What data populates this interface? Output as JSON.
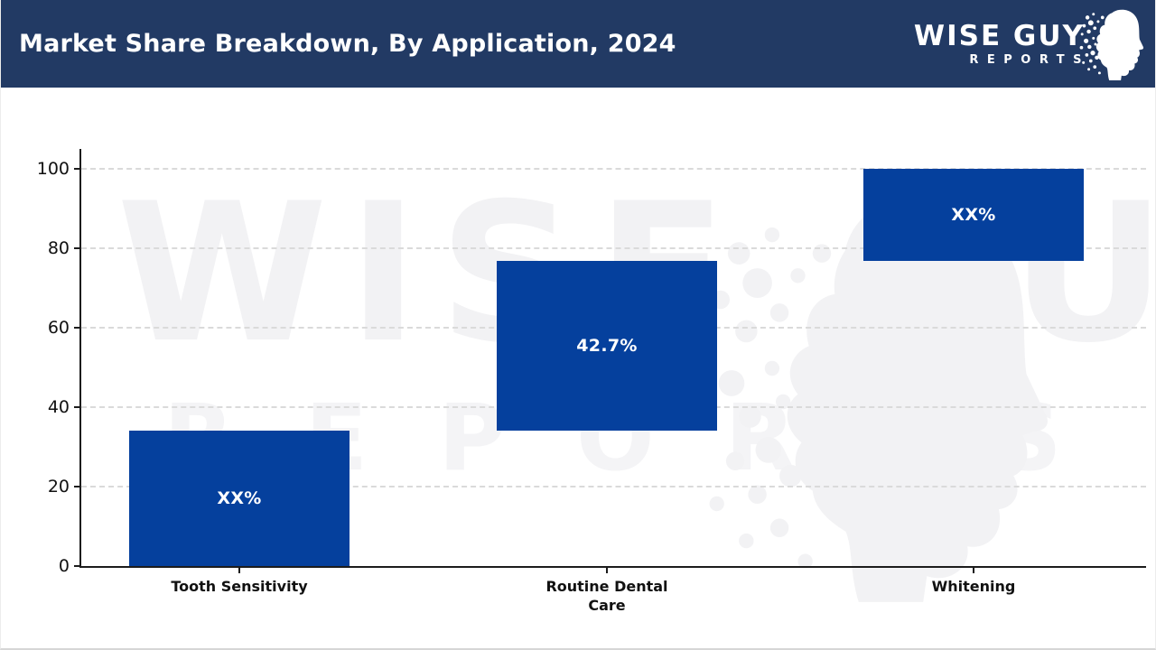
{
  "header": {
    "title": "Market Share Breakdown, By Application, 2024",
    "logo": {
      "name": "WISE GUY REPORTS",
      "line1": "WISE GUY",
      "line2": "REPORTS"
    }
  },
  "watermark": {
    "line1": "WISE GUY",
    "line2": "REPORTS"
  },
  "colors": {
    "header_bg": "#223a64",
    "bar": "#05409d",
    "grid": "#dadada",
    "axis": "#1c1c1c",
    "tick_text": "#111111",
    "bar_label_text": "#ffffff",
    "watermark": "#f2f2f4"
  },
  "chart_data": {
    "type": "bar",
    "subtype": "stacked_waterfall",
    "title": "Market Share Breakdown, By Application, 2024",
    "categories": [
      "Tooth Sensitivity",
      "Routine Dental Care",
      "Whitening"
    ],
    "segments": [
      {
        "category": "Tooth Sensitivity",
        "start": 0,
        "end": 34.2,
        "label": "XX%"
      },
      {
        "category": "Routine Dental Care",
        "start": 34.2,
        "end": 76.9,
        "value": 42.7,
        "label": "42.7%"
      },
      {
        "category": "Whitening",
        "start": 76.9,
        "end": 100,
        "label": "XX%"
      }
    ],
    "xlabel": "",
    "ylabel": "",
    "yticks": [
      0,
      20,
      40,
      60,
      80,
      100
    ],
    "ylim": [
      0,
      105
    ],
    "grid": "horizontal-dashed",
    "legend": "none"
  }
}
